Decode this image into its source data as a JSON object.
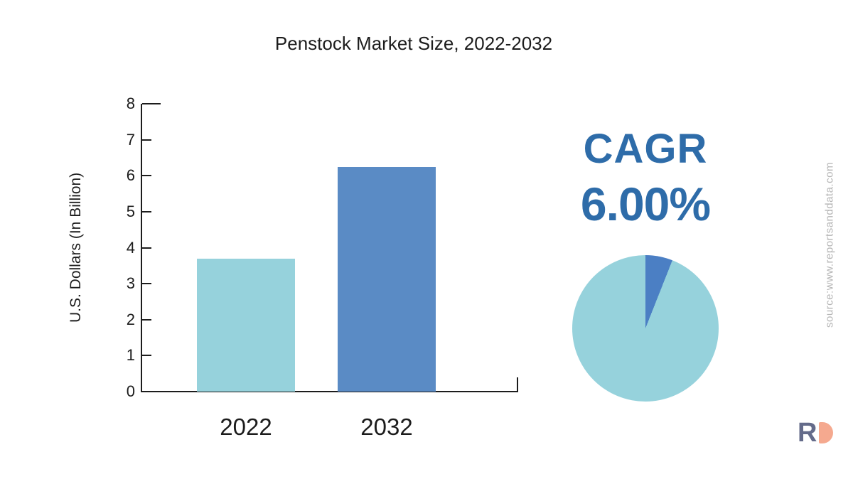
{
  "chart_data": [
    {
      "type": "bar",
      "title": "Penstock Market Size, 2022-2032",
      "categories": [
        "2022",
        "2032"
      ],
      "values": [
        3.7,
        6.25
      ],
      "ylabel": "U.S. Dollars (In Billion)",
      "xlabel": "",
      "ylim": [
        0,
        8
      ],
      "yticks": [
        0,
        1,
        2,
        3,
        4,
        5,
        6,
        7,
        8
      ],
      "bar_colors": [
        "#96d2dc",
        "#5a8bc5"
      ],
      "grid": false,
      "legend_position": "none"
    },
    {
      "type": "pie",
      "label": "CAGR",
      "value_label": "6.00%",
      "slices": [
        {
          "name": "CAGR 6.00%",
          "value": 6,
          "color": "#4b7fc4"
        },
        {
          "name": "remainder",
          "value": 94,
          "color": "#96d2dc"
        }
      ],
      "start_angle_deg": 0,
      "legend_position": "none"
    }
  ],
  "colors": {
    "cagr_text": "#2e6ca9",
    "axis": "#1c1c1c",
    "logo_r": "#646b8a",
    "logo_d": "#f5a98f"
  },
  "watermark": {
    "source_text": "source:www.reportsanddata.com"
  },
  "logo": {
    "letter": "R"
  }
}
